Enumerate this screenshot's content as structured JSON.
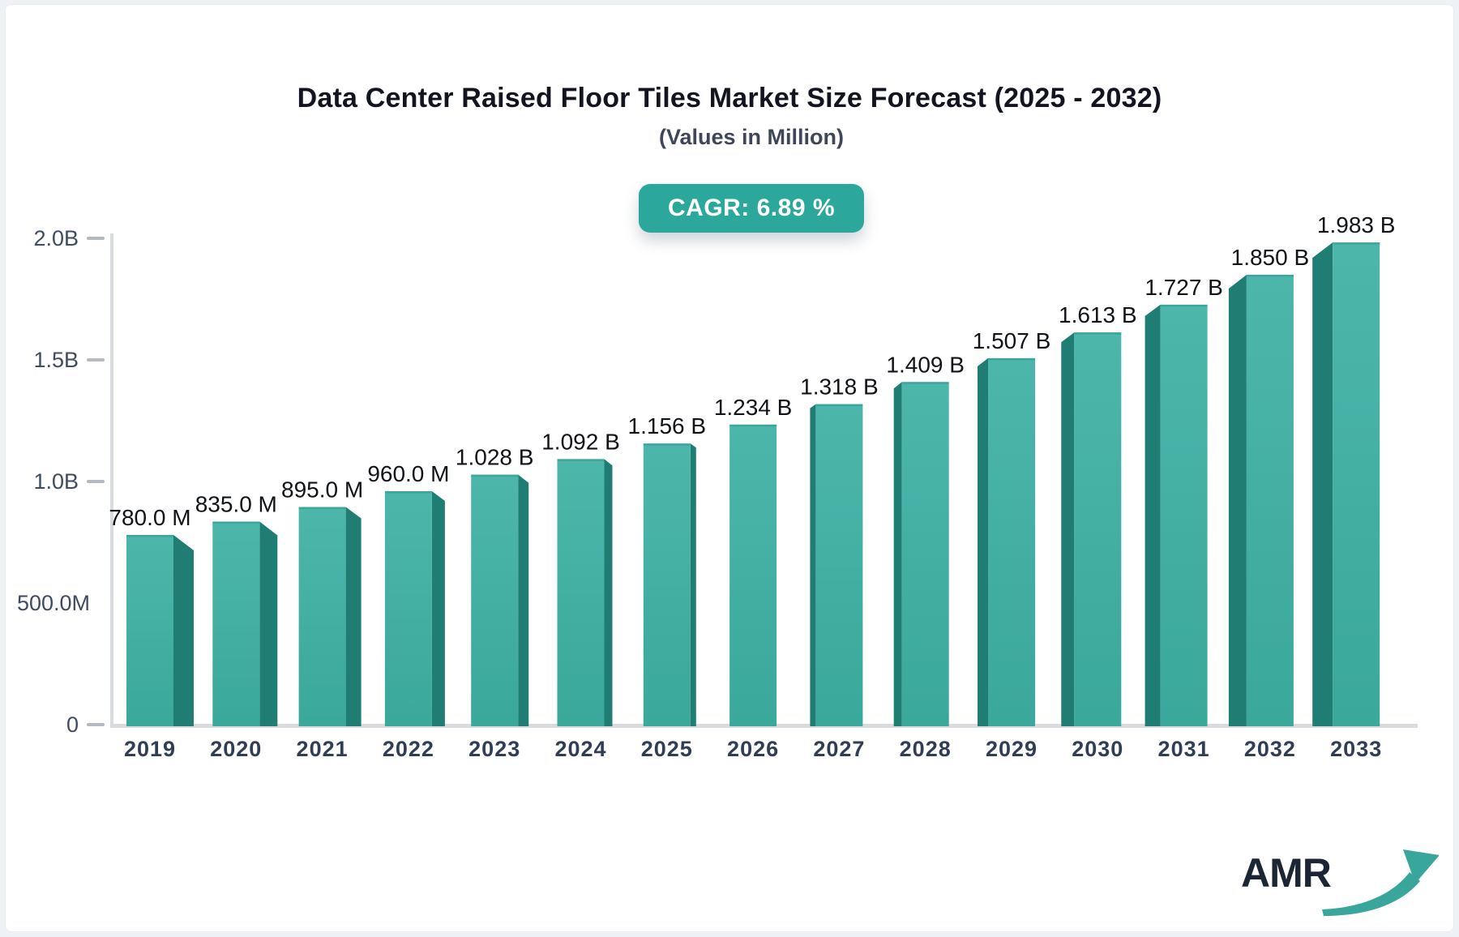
{
  "header": {
    "title": "Data Center Raised Floor Tiles Market Size Forecast (2025 - 2032)",
    "subtitle": "(Values in Million)",
    "cagr_badge": "CAGR: 6.89 %"
  },
  "chart_data": {
    "type": "bar",
    "title": "Data Center Raised Floor Tiles Market Size Forecast (2025 - 2032)",
    "subtitle": "(Values in Million)",
    "categories": [
      "2019",
      "2020",
      "2021",
      "2022",
      "2023",
      "2024",
      "2025",
      "2026",
      "2027",
      "2028",
      "2029",
      "2030",
      "2031",
      "2032",
      "2033"
    ],
    "values_millions": [
      780,
      835,
      895,
      960,
      1028,
      1092,
      1156,
      1234,
      1318,
      1409,
      1507,
      1613,
      1727,
      1850,
      1983
    ],
    "bar_labels": [
      "780.0 M",
      "835.0 M",
      "895.0 M",
      "960.0 M",
      "1.028 B",
      "1.092 B",
      "1.156 B",
      "1.234 B",
      "1.318 B",
      "1.409 B",
      "1.507 B",
      "1.613 B",
      "1.727 B",
      "1.850 B",
      "1.983 B"
    ],
    "cagr_percent": 6.89,
    "y_axis": {
      "max_millions": 2000,
      "ticks": [
        {
          "label": "0",
          "value": 0,
          "dash": true
        },
        {
          "label": "500.0M",
          "value": 500,
          "dash": false
        },
        {
          "label": "1.0B",
          "value": 1000,
          "dash": true
        },
        {
          "label": "1.5B",
          "value": 1500,
          "dash": true
        },
        {
          "label": "2.0B",
          "value": 2000,
          "dash": true
        }
      ]
    },
    "grid": false,
    "legend": null,
    "style": "pseudo-3d bars, side faces angled toward chart center"
  },
  "logo": {
    "text": "AMR"
  },
  "colors": {
    "accent_badge": "#2ba89b",
    "bar_front_top": "#4db6ab",
    "bar_front_bottom": "#3aa89b",
    "bar_top_edge": "#2e9a8e",
    "bar_side": "#1f7d74",
    "axis_line": "#d8dce1",
    "tick_dash": "#b3bac2",
    "axis_label": "#3e4c63",
    "year_label": "#2f3e55",
    "value_label": "#101318",
    "title": "#121420",
    "subtitle": "#3d4757",
    "logo_text": "#1b2533",
    "logo_arrow": "#38a69b"
  }
}
